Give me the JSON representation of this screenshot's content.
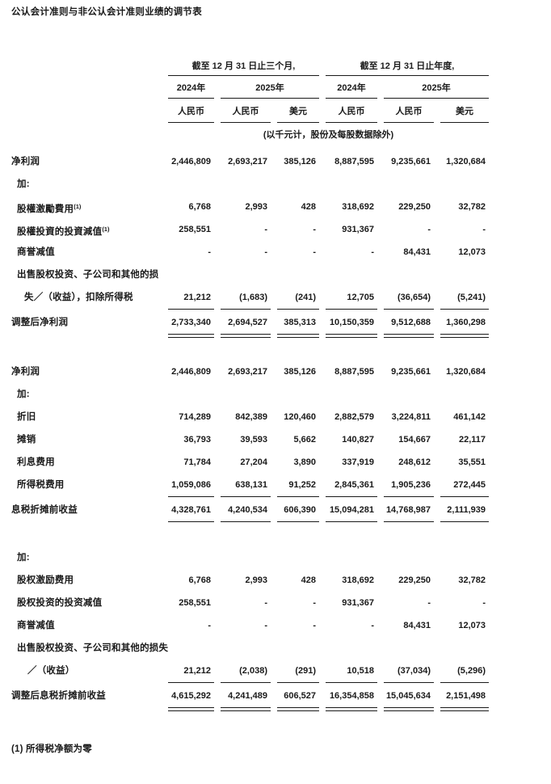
{
  "page": {
    "title": "公认会计准则与非公认会计准则业绩的调节表"
  },
  "colors": {
    "background": "#ffffff",
    "text": "#1a1a1a",
    "rule": "#1a1a1a"
  },
  "header": {
    "period_quarter": "截至 12 月 31 日止三个月,",
    "period_year": "截至 12 月 31 日止年度,",
    "years": [
      "2024年",
      "2025年",
      "2024年",
      "2025年"
    ],
    "currencies": [
      "人民币",
      "人民币",
      "美元",
      "人民币",
      "人民币",
      "美元"
    ],
    "units_note": "(以千元计，股份及每股数据除外)"
  },
  "rows": [
    {
      "label": "净利润",
      "values": [
        "2,446,809",
        "2,693,217",
        "385,126",
        "8,887,595",
        "9,235,661",
        "1,320,684"
      ]
    },
    {
      "label": "加:"
    },
    {
      "label": "股權激勵費用",
      "sup": "(1)",
      "values": [
        "6,768",
        "2,993",
        "428",
        "318,692",
        "229,250",
        "32,782"
      ]
    },
    {
      "label": "股權投資的投資減值",
      "sup": "(1)",
      "values": [
        "258,551",
        "-",
        "-",
        "931,367",
        "-",
        "-"
      ]
    },
    {
      "label": "商誉减值",
      "values": [
        "-",
        "-",
        "-",
        "-",
        "84,431",
        "12,073"
      ]
    },
    {
      "label": "出售股权投资、子公司和其他的损"
    },
    {
      "label": "失／（收益），扣除所得税",
      "values": [
        "21,212",
        "(1,683)",
        "(241)",
        "12,705",
        "(36,654)",
        "(5,241)"
      ]
    },
    {
      "label": "调整后净利润",
      "values": [
        "2,733,340",
        "2,694,527",
        "385,313",
        "10,150,359",
        "9,512,688",
        "1,360,298"
      ]
    },
    {
      "label": "净利润",
      "values": [
        "2,446,809",
        "2,693,217",
        "385,126",
        "8,887,595",
        "9,235,661",
        "1,320,684"
      ]
    },
    {
      "label": "加:"
    },
    {
      "label": "折旧",
      "values": [
        "714,289",
        "842,389",
        "120,460",
        "2,882,579",
        "3,224,811",
        "461,142"
      ]
    },
    {
      "label": "摊销",
      "values": [
        "36,793",
        "39,593",
        "5,662",
        "140,827",
        "154,667",
        "22,117"
      ]
    },
    {
      "label": "利息费用",
      "values": [
        "71,784",
        "27,204",
        "3,890",
        "337,919",
        "248,612",
        "35,551"
      ]
    },
    {
      "label": "所得税费用",
      "values": [
        "1,059,086",
        "638,131",
        "91,252",
        "2,845,361",
        "1,905,236",
        "272,445"
      ]
    },
    {
      "label": "息税折摊前收益",
      "values": [
        "4,328,761",
        "4,240,534",
        "606,390",
        "15,094,281",
        "14,768,987",
        "2,111,939"
      ]
    },
    {
      "label": "加:"
    },
    {
      "label": "股权激励费用",
      "values": [
        "6,768",
        "2,993",
        "428",
        "318,692",
        "229,250",
        "32,782"
      ]
    },
    {
      "label": "股权投资的投资减值",
      "values": [
        "258,551",
        "-",
        "-",
        "931,367",
        "-",
        "-"
      ]
    },
    {
      "label": "商誉减值",
      "values": [
        "-",
        "-",
        "-",
        "-",
        "84,431",
        "12,073"
      ]
    },
    {
      "label": "出售股权投资、子公司和其他的损失"
    },
    {
      "label": "／（收益）",
      "values": [
        "21,212",
        "(2,038)",
        "(291)",
        "10,518",
        "(37,034)",
        "(5,296)"
      ]
    },
    {
      "label": "调整后息税折摊前收益",
      "values": [
        "4,615,292",
        "4,241,489",
        "606,527",
        "16,354,858",
        "15,045,634",
        "2,151,498"
      ]
    }
  ],
  "footnote": "(1) 所得税净额为零"
}
